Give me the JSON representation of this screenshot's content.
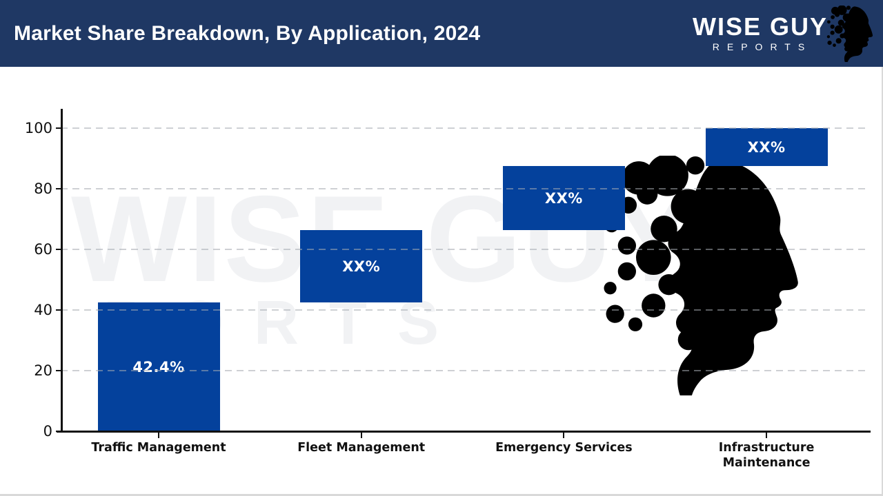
{
  "header": {
    "title": "Market Share Breakdown, By Application, 2024",
    "logo": {
      "line1": "WISE GUY",
      "line2": "REPORTS"
    }
  },
  "watermark": {
    "line1": "WISE GUY",
    "line2": "PORTS"
  },
  "colors": {
    "header_bg": "#1f3864",
    "bar": "#04419c",
    "bar_label": "#ffffff",
    "grid": "#d9d9d9",
    "axis": "#111111",
    "watermark": "#f1f2f4"
  },
  "chart_data": {
    "type": "bar",
    "subtype": "waterfall",
    "title": "Market Share Breakdown, By Application, 2024",
    "categories": [
      "Traffic Management",
      "Fleet Management",
      "Emergency Services",
      "Infrastructure Maintenance"
    ],
    "series": [
      {
        "name": "Market Share (%)",
        "segments": [
          {
            "category": "Traffic Management",
            "start": 0,
            "end": 42.4,
            "value": 42.4,
            "label": "42.4%"
          },
          {
            "category": "Fleet Management",
            "start": 42.4,
            "end": 66.3,
            "value": 23.9,
            "label": "XX%"
          },
          {
            "category": "Emergency Services",
            "start": 66.3,
            "end": 87.5,
            "value": 21.2,
            "label": "XX%"
          },
          {
            "category": "Infrastructure Maintenance",
            "start": 87.5,
            "end": 100,
            "value": 12.5,
            "label": "XX%"
          }
        ]
      }
    ],
    "xlabel": "",
    "ylabel": "",
    "ylim": [
      0,
      100
    ],
    "yticks": [
      0,
      20,
      40,
      60,
      80,
      100
    ],
    "grid": "dashed-horizontal",
    "legend": "none"
  }
}
